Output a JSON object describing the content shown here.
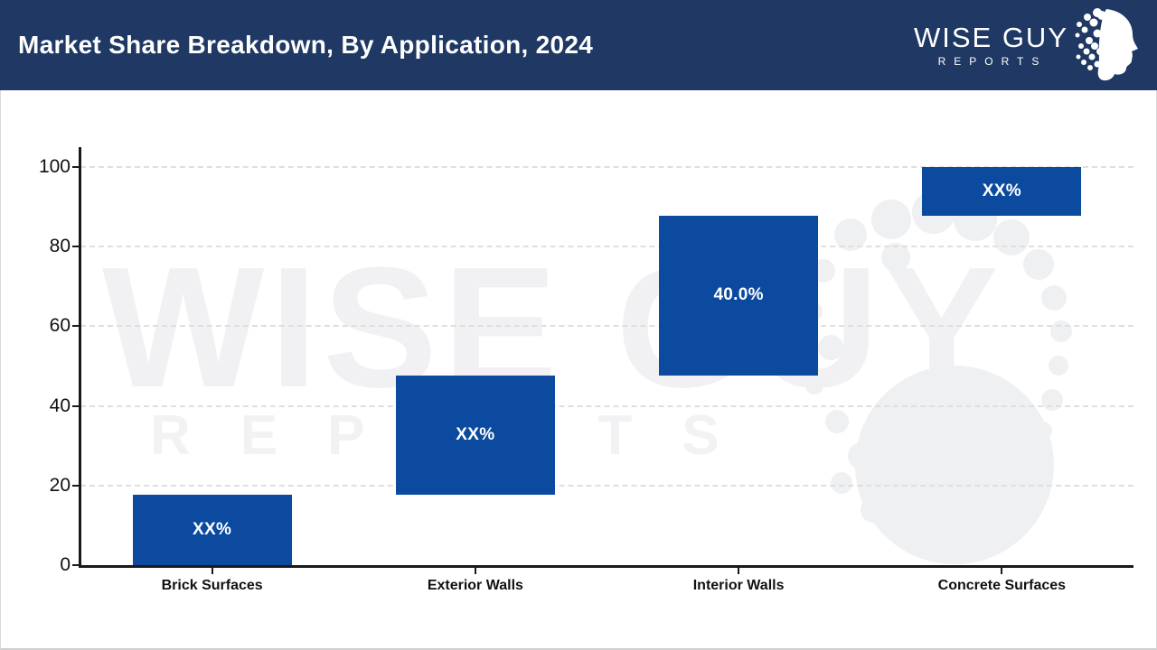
{
  "header": {
    "title": "Market Share Breakdown, By Application, 2024",
    "logo": {
      "line1": "WISE GUY",
      "line2": "REPORTS",
      "face_icon": "dotted-head-profile"
    }
  },
  "watermark": {
    "line1": "WISE GUY",
    "line2": "REPORTS"
  },
  "colors": {
    "header_bg": "#1f3864",
    "bar": "#0b4a9e",
    "bar_label": "#ffffff",
    "gridline": "#dfdfdf",
    "axis": "#1a1a1a",
    "watermark": "#f1f1f3"
  },
  "chart_data": {
    "type": "bar",
    "subtype": "floating-waterfall",
    "title": "Market Share Breakdown, By Application, 2024",
    "categories": [
      "Brick Surfaces",
      "Exterior Walls",
      "Interior Walls",
      "Concrete Surfaces"
    ],
    "segments": [
      {
        "category": "Brick Surfaces",
        "from": 0,
        "to": 17.7,
        "label": "XX%"
      },
      {
        "category": "Exterior Walls",
        "from": 17.7,
        "to": 47.7,
        "label": "XX%"
      },
      {
        "category": "Interior Walls",
        "from": 47.7,
        "to": 87.7,
        "label": "40.0%"
      },
      {
        "category": "Concrete Surfaces",
        "from": 87.7,
        "to": 100,
        "label": "XX%"
      }
    ],
    "xlabel": "",
    "ylabel": "",
    "ylim": [
      0,
      100
    ],
    "yticks": [
      0,
      20,
      40,
      60,
      80,
      100
    ],
    "grid": "horizontal-dashed",
    "legend": "none"
  }
}
